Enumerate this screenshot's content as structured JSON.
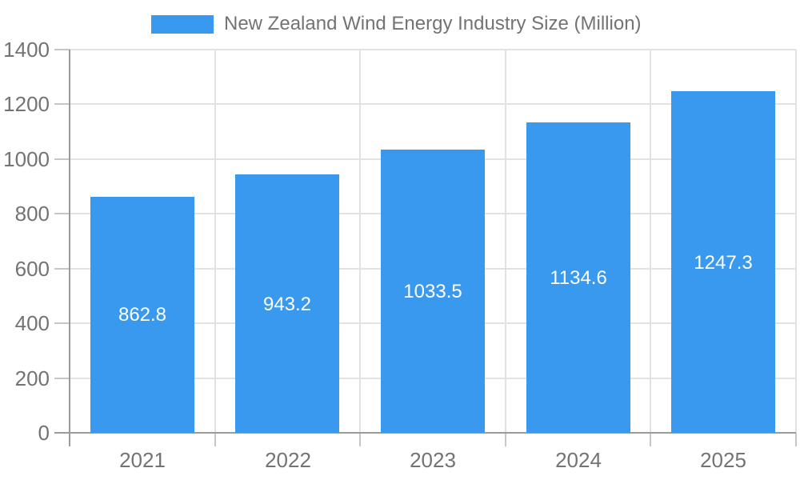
{
  "chart_data": {
    "type": "bar",
    "title": "New Zealand Wind Energy Industry Size (Million)",
    "legend": {
      "position": "top",
      "label": "New Zealand Wind Energy Industry Size (Million)"
    },
    "categories": [
      "2021",
      "2022",
      "2023",
      "2024",
      "2025"
    ],
    "values": [
      862.8,
      943.2,
      1033.5,
      1134.6,
      1247.3
    ],
    "xlabel": "",
    "ylabel": "",
    "ylim": [
      0,
      1400
    ],
    "yticks": [
      0,
      200,
      400,
      600,
      800,
      1000,
      1200,
      1400
    ],
    "grid": true,
    "value_label_decimals": 1,
    "colors": {
      "bar": "#3999EE",
      "grid": "#e2e2e2",
      "axis": "#9b9b9b",
      "tick": "#c6c6c6",
      "text": "#737373",
      "value_label": "#ffffff",
      "background": "#ffffff"
    }
  }
}
